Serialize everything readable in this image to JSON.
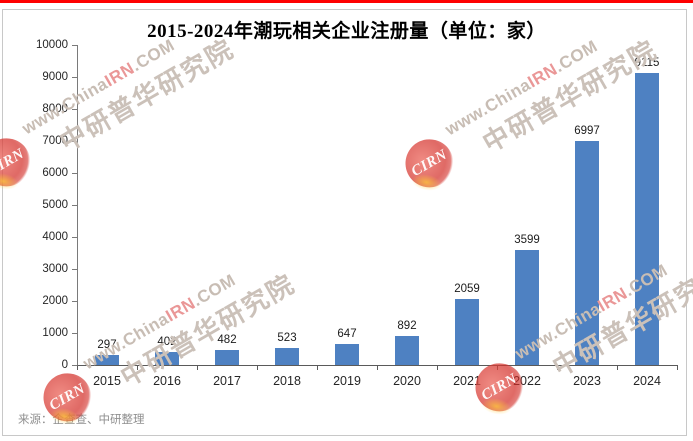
{
  "page": {
    "title": "2015-2024年潮玩相关企业注册量（单位：家）",
    "source_note": "来源：企查查、中研整理",
    "accent_color": "#fe0000"
  },
  "chart_data": {
    "type": "bar",
    "title": "2015-2024年潮玩相关企业注册量（单位：家）",
    "unit": "家",
    "categories": [
      "2015",
      "2016",
      "2017",
      "2018",
      "2019",
      "2020",
      "2021",
      "2022",
      "2023",
      "2024"
    ],
    "values": [
      297,
      402,
      482,
      523,
      647,
      892,
      2059,
      3599,
      6997,
      9115
    ],
    "ylim": [
      0,
      10000
    ],
    "y_tick_step": 1000,
    "xlabel": "",
    "ylabel": "",
    "grid": false,
    "legend": "none",
    "data_labels": true,
    "bar_color": "#4e81c2"
  },
  "watermark": {
    "site_prefix": "www.China",
    "site_highlight": "IRN",
    "site_suffix": ".COM",
    "org_name": "中研普华研究院",
    "logo_text": "CIRN",
    "logo_color": "#d3302a",
    "text_color": "#c8bdb4",
    "highlight_color": "#ea9797"
  }
}
